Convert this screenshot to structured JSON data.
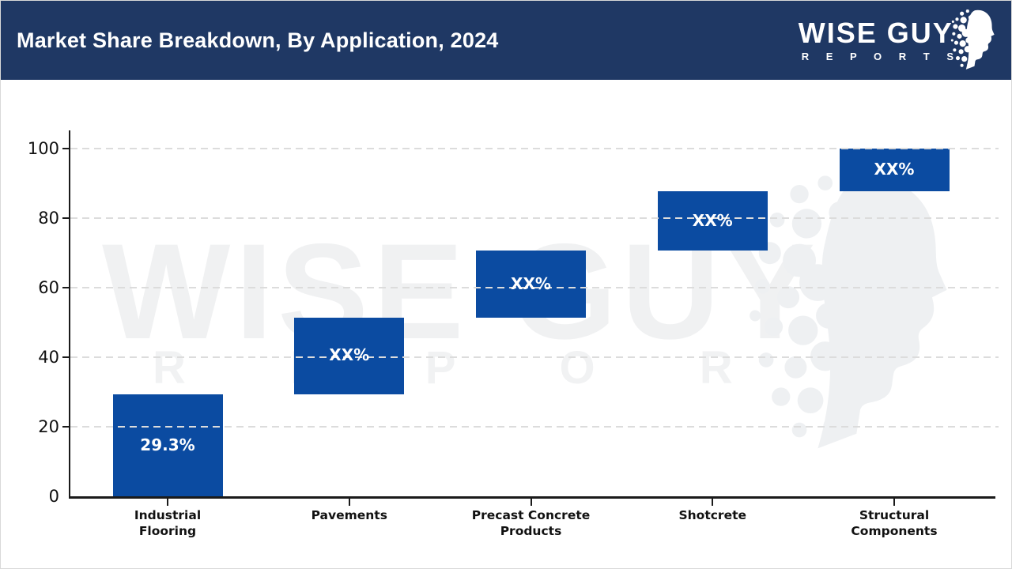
{
  "header": {
    "title": "Market Share Breakdown, By Application, 2024",
    "brand": {
      "line1": "WISE GUY",
      "line2": "R E P O R T S"
    }
  },
  "watermark": {
    "line1": "WISE GUY",
    "line2": "R E P O R T S"
  },
  "icons": {
    "brand_face": "dotted-face-profile"
  },
  "colors": {
    "header_bg": "#1f3864",
    "bar": "#0b4ba1",
    "grid": "#dcdcdc",
    "axis": "#1a1a1a",
    "bar_label_text": "#ffffff",
    "watermark": "#f0f1f2"
  },
  "chart_data": {
    "type": "bar",
    "subtype": "waterfall",
    "title": "Market Share Breakdown, By Application, 2024",
    "categories": [
      "Industrial Flooring",
      "Pavements",
      "Precast Concrete Products",
      "Shotcrete",
      "Structural Components"
    ],
    "category_label_lines": [
      [
        "Industrial",
        "Flooring"
      ],
      [
        "Pavements"
      ],
      [
        "Precast Concrete",
        "Products"
      ],
      [
        "Shotcrete"
      ],
      [
        "Structural",
        "Components"
      ]
    ],
    "series": [
      {
        "name": "Market Share (%)",
        "starts": [
          0,
          29.3,
          51.4,
          70.6,
          87.7
        ],
        "ends": [
          29.3,
          51.4,
          70.6,
          87.7,
          100
        ],
        "labels": [
          "29.3%",
          "XX%",
          "XX%",
          "XX%",
          "XX%"
        ]
      }
    ],
    "xlabel": "",
    "ylabel": "",
    "ylim": [
      0,
      100
    ],
    "yticks": [
      0,
      20,
      40,
      60,
      80,
      100
    ],
    "grid": "dashed-horizontal",
    "legend": "none"
  }
}
